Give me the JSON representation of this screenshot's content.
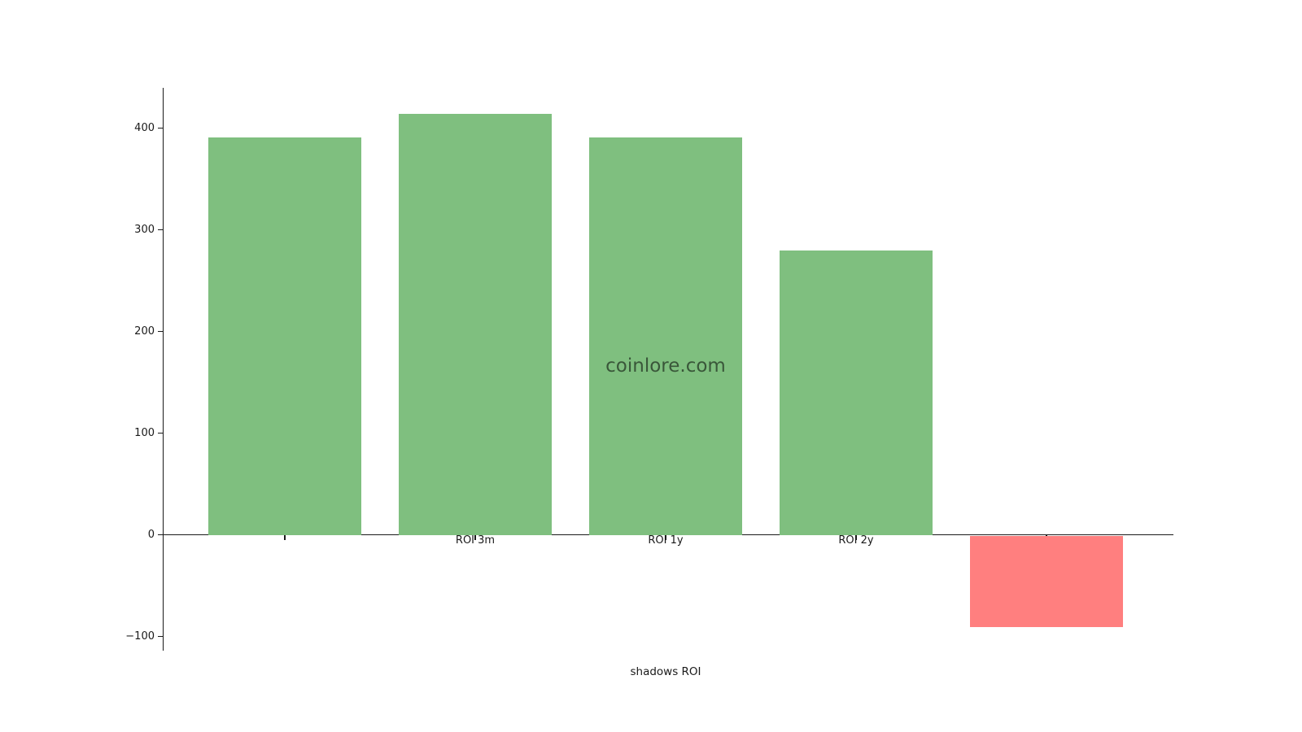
{
  "chart_data": {
    "type": "bar",
    "title": "",
    "xlabel": "shadows ROI",
    "ylabel": "",
    "categories": [
      "",
      "ROI 3m",
      "ROI 1y",
      "ROI 2y",
      ""
    ],
    "values": [
      391,
      414,
      391,
      280,
      -90
    ],
    "bar_colors": [
      "#7fbf7f",
      "#7fbf7f",
      "#7fbf7f",
      "#7fbf7f",
      "#ff7f7f"
    ],
    "positive_color": "#7fbf7f",
    "negative_color": "#ff7f7f",
    "yticks": [
      400,
      300,
      200,
      100,
      0,
      -100
    ],
    "ylim": [
      -113,
      440
    ],
    "grid": false,
    "legend": "none",
    "axis_color": "#1a1a1a",
    "watermark": "coinlore.com"
  }
}
